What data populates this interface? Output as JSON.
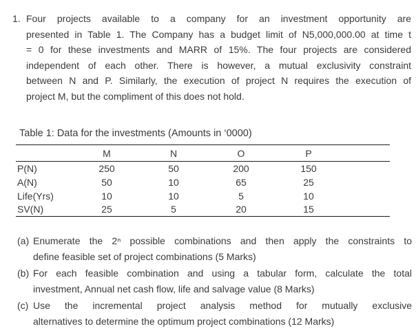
{
  "problem": {
    "number": "1.",
    "lines": [
      "Four projects available to a company for an investment opportunity are",
      "presented in Table 1. The Company has a budget limit of N5,000,000.00 at time t",
      "= 0 for these investments and MARR of 15%. The four projects are considered",
      "independent of each other. There is however, a mutual exclusivity constraint",
      "between N and P. Similarly, the execution of project N requires the execution of",
      "project M, but the compliment of this does not hold."
    ]
  },
  "table": {
    "caption": "Table 1: Data for the investments (Amounts in ‘0000)",
    "columns": [
      "M",
      "N",
      "O",
      "P"
    ],
    "rows": [
      {
        "label": "P(N)",
        "values": [
          "250",
          "50",
          "200",
          "150"
        ]
      },
      {
        "label": "A(N)",
        "values": [
          "50",
          "10",
          "65",
          "25"
        ]
      },
      {
        "label": "Life(Yrs)",
        "values": [
          "10",
          "10",
          "5",
          "10"
        ]
      },
      {
        "label": "SV(N)",
        "values": [
          "25",
          "5",
          "20",
          "15"
        ]
      }
    ]
  },
  "questions": [
    {
      "marker": "(a)",
      "lines": [
        "Enumerate the 2ⁿ possible combinations and then apply the constraints to",
        "define feasible set of project combinations (5 Marks)"
      ]
    },
    {
      "marker": "(b)",
      "lines": [
        "For each feasible combination and using a tabular form, calculate the total",
        "investment, Annual net cash flow, life and salvage value (8 Marks)"
      ]
    },
    {
      "marker": "(c)",
      "lines": [
        "Use the incremental project analysis method for mutually exclusive",
        "alternatives to determine the optimum project combinations (12 Marks)"
      ]
    }
  ]
}
